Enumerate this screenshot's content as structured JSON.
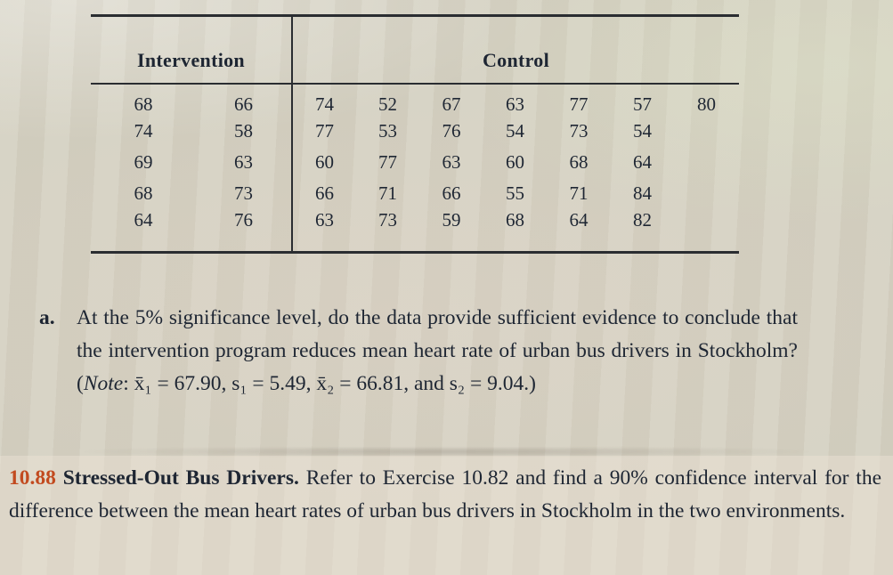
{
  "colors": {
    "paper": "#d5d1c2",
    "ink": "#1e2633",
    "rule": "#2a2d31",
    "accent": "#c24a1f"
  },
  "table": {
    "headers": {
      "intervention": "Intervention",
      "control": "Control"
    },
    "rows": [
      {
        "intervention": [
          "68",
          "66"
        ],
        "control": [
          "74",
          "52",
          "67",
          "63",
          "77",
          "57",
          "80"
        ]
      },
      {
        "intervention": [
          "74",
          "58"
        ],
        "control": [
          "77",
          "53",
          "76",
          "54",
          "73",
          "54"
        ]
      },
      {
        "intervention": [
          "69",
          "63"
        ],
        "control": [
          "60",
          "77",
          "63",
          "60",
          "68",
          "64"
        ]
      },
      {
        "intervention": [
          "68",
          "73"
        ],
        "control": [
          "66",
          "71",
          "66",
          "55",
          "71",
          "84"
        ]
      },
      {
        "intervention": [
          "64",
          "76"
        ],
        "control": [
          "63",
          "73",
          "59",
          "68",
          "64",
          "82"
        ]
      }
    ]
  },
  "part_a": {
    "label": "a.",
    "text_before_note": "At the 5% significance level, do the data provide sufficient evidence to conclude that the intervention program reduces mean heart rate of urban bus drivers in Stockholm? (",
    "note_label": "Note",
    "note_rest": ": x̄₁ = 67.90, s₁ = 5.49, x̄₂ = 66.81, and s₂ = 9.04.)"
  },
  "exercise": {
    "number": "10.88",
    "title": "Stressed-Out Bus Drivers.",
    "text": "Refer to Exercise 10.82 and find a 90% confidence interval for the difference between the mean heart rates of urban bus drivers in Stockholm in the two environments."
  }
}
